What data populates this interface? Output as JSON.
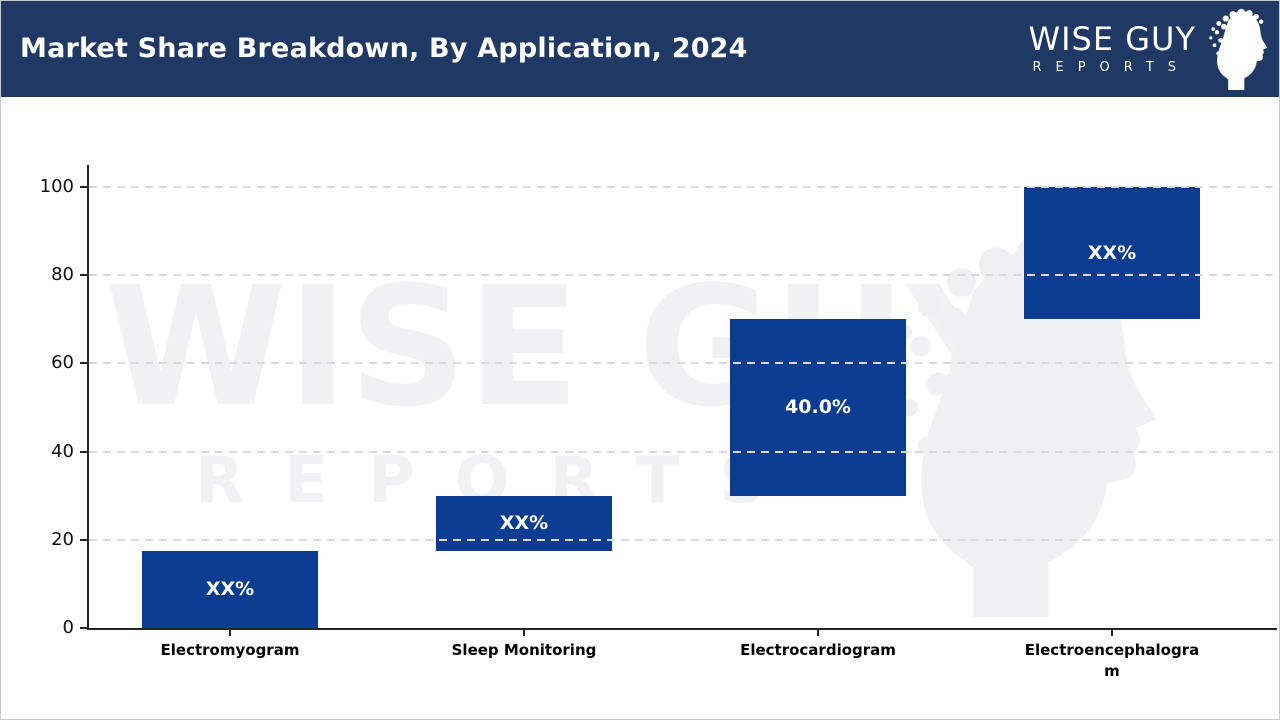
{
  "header": {
    "title": "Market Share Breakdown, By Application, 2024",
    "logo": {
      "name": "WISE GUY",
      "sub": "REPORTS"
    }
  },
  "watermark": {
    "name": "WISE GUY",
    "sub": "REPORTS"
  },
  "colors": {
    "header_bg": "#203864",
    "bar": "#0a3d91",
    "axis": "#262626",
    "grid": "#d9d9d9",
    "bar_label": "#ffffff",
    "tick_label": "#111111",
    "watermark": "#f1f1f4",
    "frame_border": "#c8c8c8"
  },
  "chart_data": {
    "type": "bar",
    "subtype": "floating-waterfall",
    "title": "Market Share Breakdown, By Application, 2024",
    "categories": [
      "Electromyogram",
      "Sleep Monitoring",
      "Electrocardiogram",
      "Electroencephalogram"
    ],
    "segments": [
      {
        "category": "Electromyogram",
        "start": 0,
        "end": 17.5,
        "size": 17.5,
        "value_label": "XX%"
      },
      {
        "category": "Sleep Monitoring",
        "start": 17.5,
        "end": 30,
        "size": 12.5,
        "value_label": "XX%"
      },
      {
        "category": "Electrocardiogram",
        "start": 30,
        "end": 70,
        "size": 40,
        "value_label": "40.0%"
      },
      {
        "category": "Electroencephalogram",
        "start": 70,
        "end": 100,
        "size": 30,
        "value_label": "XX%"
      }
    ],
    "xlabel": "",
    "ylabel": "",
    "ylim": [
      0,
      100
    ],
    "yticks": [
      0,
      20,
      40,
      60,
      80,
      100
    ],
    "grid": "horizontal-dashed",
    "grid_above_bars": true,
    "legend": "none",
    "bar_color": "#0a3d91"
  }
}
